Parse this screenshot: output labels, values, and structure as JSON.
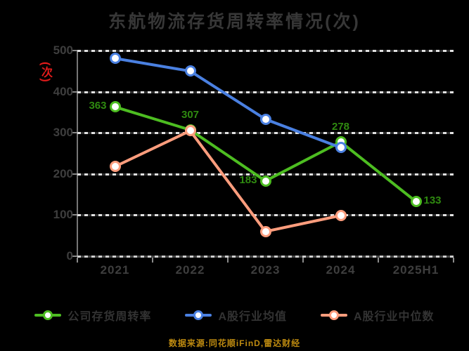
{
  "chart_data": {
    "type": "line",
    "title": "东航物流存货周转率情况(次)",
    "categories": [
      "2021",
      "2022",
      "2023",
      "2024",
      "2025H1"
    ],
    "ylim": [
      0,
      500
    ],
    "y_ticks": [
      0,
      100,
      200,
      300,
      400,
      500
    ],
    "grid": "dashed-horizontal",
    "legend_position": "bottom",
    "background": "#000000",
    "series": [
      {
        "name": "公司存货周转率",
        "color": "#4dbd21",
        "label_color": "#2f8a10",
        "values": [
          363,
          307,
          183,
          278,
          133
        ],
        "point_labels": [
          "363",
          "307",
          "183",
          "278",
          "133"
        ],
        "label_placement": [
          "left",
          "top",
          "left",
          "top",
          "right"
        ]
      },
      {
        "name": "A股行业均值",
        "color": "#4a80e1",
        "label_color": "#4a80e1",
        "values": [
          481,
          450,
          333,
          264,
          null
        ],
        "point_labels": null,
        "label_placement": null
      },
      {
        "name": "A股行业中位数",
        "color": "#ff9d7d",
        "label_color": "#ff9d7d",
        "values": [
          218,
          305,
          60,
          99,
          null
        ],
        "point_labels": null,
        "label_placement": null
      }
    ]
  },
  "y_axis": {
    "unit_label": "(次)",
    "unit_color": "#e21b1b"
  },
  "footer": {
    "text": "数据来源:同花顺iFinD,雷达财经",
    "color": "#bd8a10"
  }
}
